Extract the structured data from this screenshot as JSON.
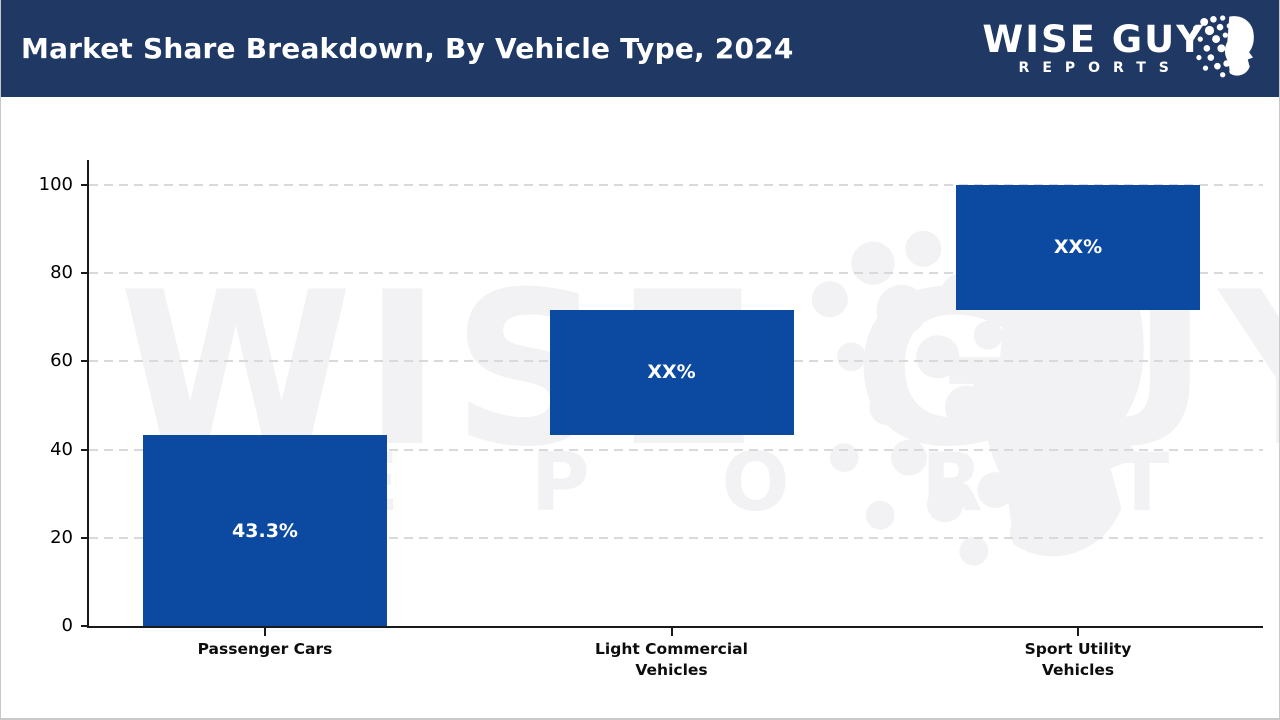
{
  "header": {
    "title": "Market Share Breakdown, By Vehicle Type, 2024",
    "logo": {
      "line1": "WISE GUY",
      "line2": "REPORTS"
    }
  },
  "watermark": {
    "line1": "WISE GUY",
    "line2": "R E P O R T S"
  },
  "colors": {
    "header_bg": "#1f3864",
    "bar": "#0b4aa0",
    "grid": "#d9d9d9",
    "axis": "#1a1a1a",
    "watermark": "#f2f2f5",
    "bar_label": "#ffffff"
  },
  "chart_data": {
    "type": "bar",
    "subtype": "floating-cumulative-percent",
    "title": "Market Share Breakdown, By Vehicle Type, 2024",
    "categories": [
      "Passenger Cars",
      "Light Commercial Vehicles",
      "Sport Utility Vehicles"
    ],
    "bars": [
      {
        "category": "Passenger Cars",
        "label_lines": "Passenger Cars",
        "start": 0,
        "end": 43.3,
        "value": 43.3,
        "label": "43.3%"
      },
      {
        "category": "Light Commercial Vehicles",
        "label_lines": "Light Commercial\nVehicles",
        "start": 43.3,
        "end": 71.7,
        "value": 28.4,
        "label": "XX%"
      },
      {
        "category": "Sport Utility Vehicles",
        "label_lines": "Sport Utility\nVehicles",
        "start": 71.7,
        "end": 100,
        "value": 28.3,
        "label": "XX%"
      }
    ],
    "yticks": [
      0,
      20,
      40,
      60,
      80,
      100
    ],
    "ylim": [
      0,
      105.7
    ],
    "xlabel": "",
    "ylabel": "",
    "grid": "horizontal-dashed",
    "legend": "none"
  }
}
